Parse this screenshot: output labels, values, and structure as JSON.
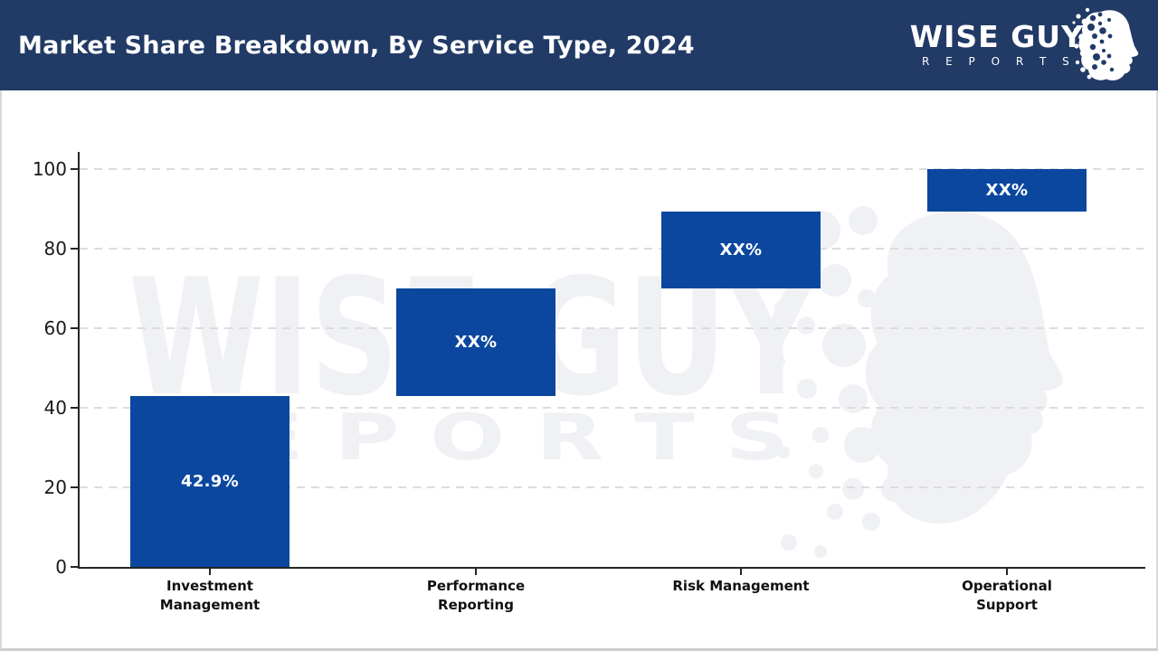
{
  "header": {
    "title": "Market Share Breakdown, By Service Type, 2024",
    "logo": {
      "main": "WISE GUY",
      "sub": "R E P O R T S"
    }
  },
  "watermark": {
    "line1": "WISE GUY",
    "line2": "R E P O R T S"
  },
  "colors": {
    "header_bg": "#213a66",
    "bar": "#0b479e",
    "grid": "#dcdcdc",
    "axis": "#262626",
    "watermark": "#f0f1f4",
    "bar_label": "#ffffff"
  },
  "chart_data": {
    "type": "bar",
    "variant": "waterfall",
    "title": "Market Share Breakdown, By Service Type, 2024",
    "xlabel": "",
    "ylabel": "",
    "ylim": [
      0,
      100
    ],
    "yticks": [
      0,
      20,
      40,
      60,
      80,
      100
    ],
    "grid": "horizontal-dashed",
    "legend": "none",
    "categories": [
      "Investment Management",
      "Performance Reporting",
      "Risk Management",
      "Operational Support"
    ],
    "category_lines": [
      [
        "Investment",
        "Management"
      ],
      [
        "Performance",
        "Reporting"
      ],
      [
        "Risk Management"
      ],
      [
        "Operational",
        "Support"
      ]
    ],
    "segments": [
      {
        "category": "Investment Management",
        "start": 0,
        "end": 42.9,
        "value": 42.9,
        "label": "42.9%"
      },
      {
        "category": "Performance Reporting",
        "start": 42.9,
        "end": 69.9,
        "value": 27.0,
        "label": "XX%"
      },
      {
        "category": "Risk Management",
        "start": 69.9,
        "end": 89.3,
        "value": 19.4,
        "label": "XX%"
      },
      {
        "category": "Operational Support",
        "start": 89.3,
        "end": 100,
        "value": 10.7,
        "label": "XX%"
      }
    ]
  }
}
